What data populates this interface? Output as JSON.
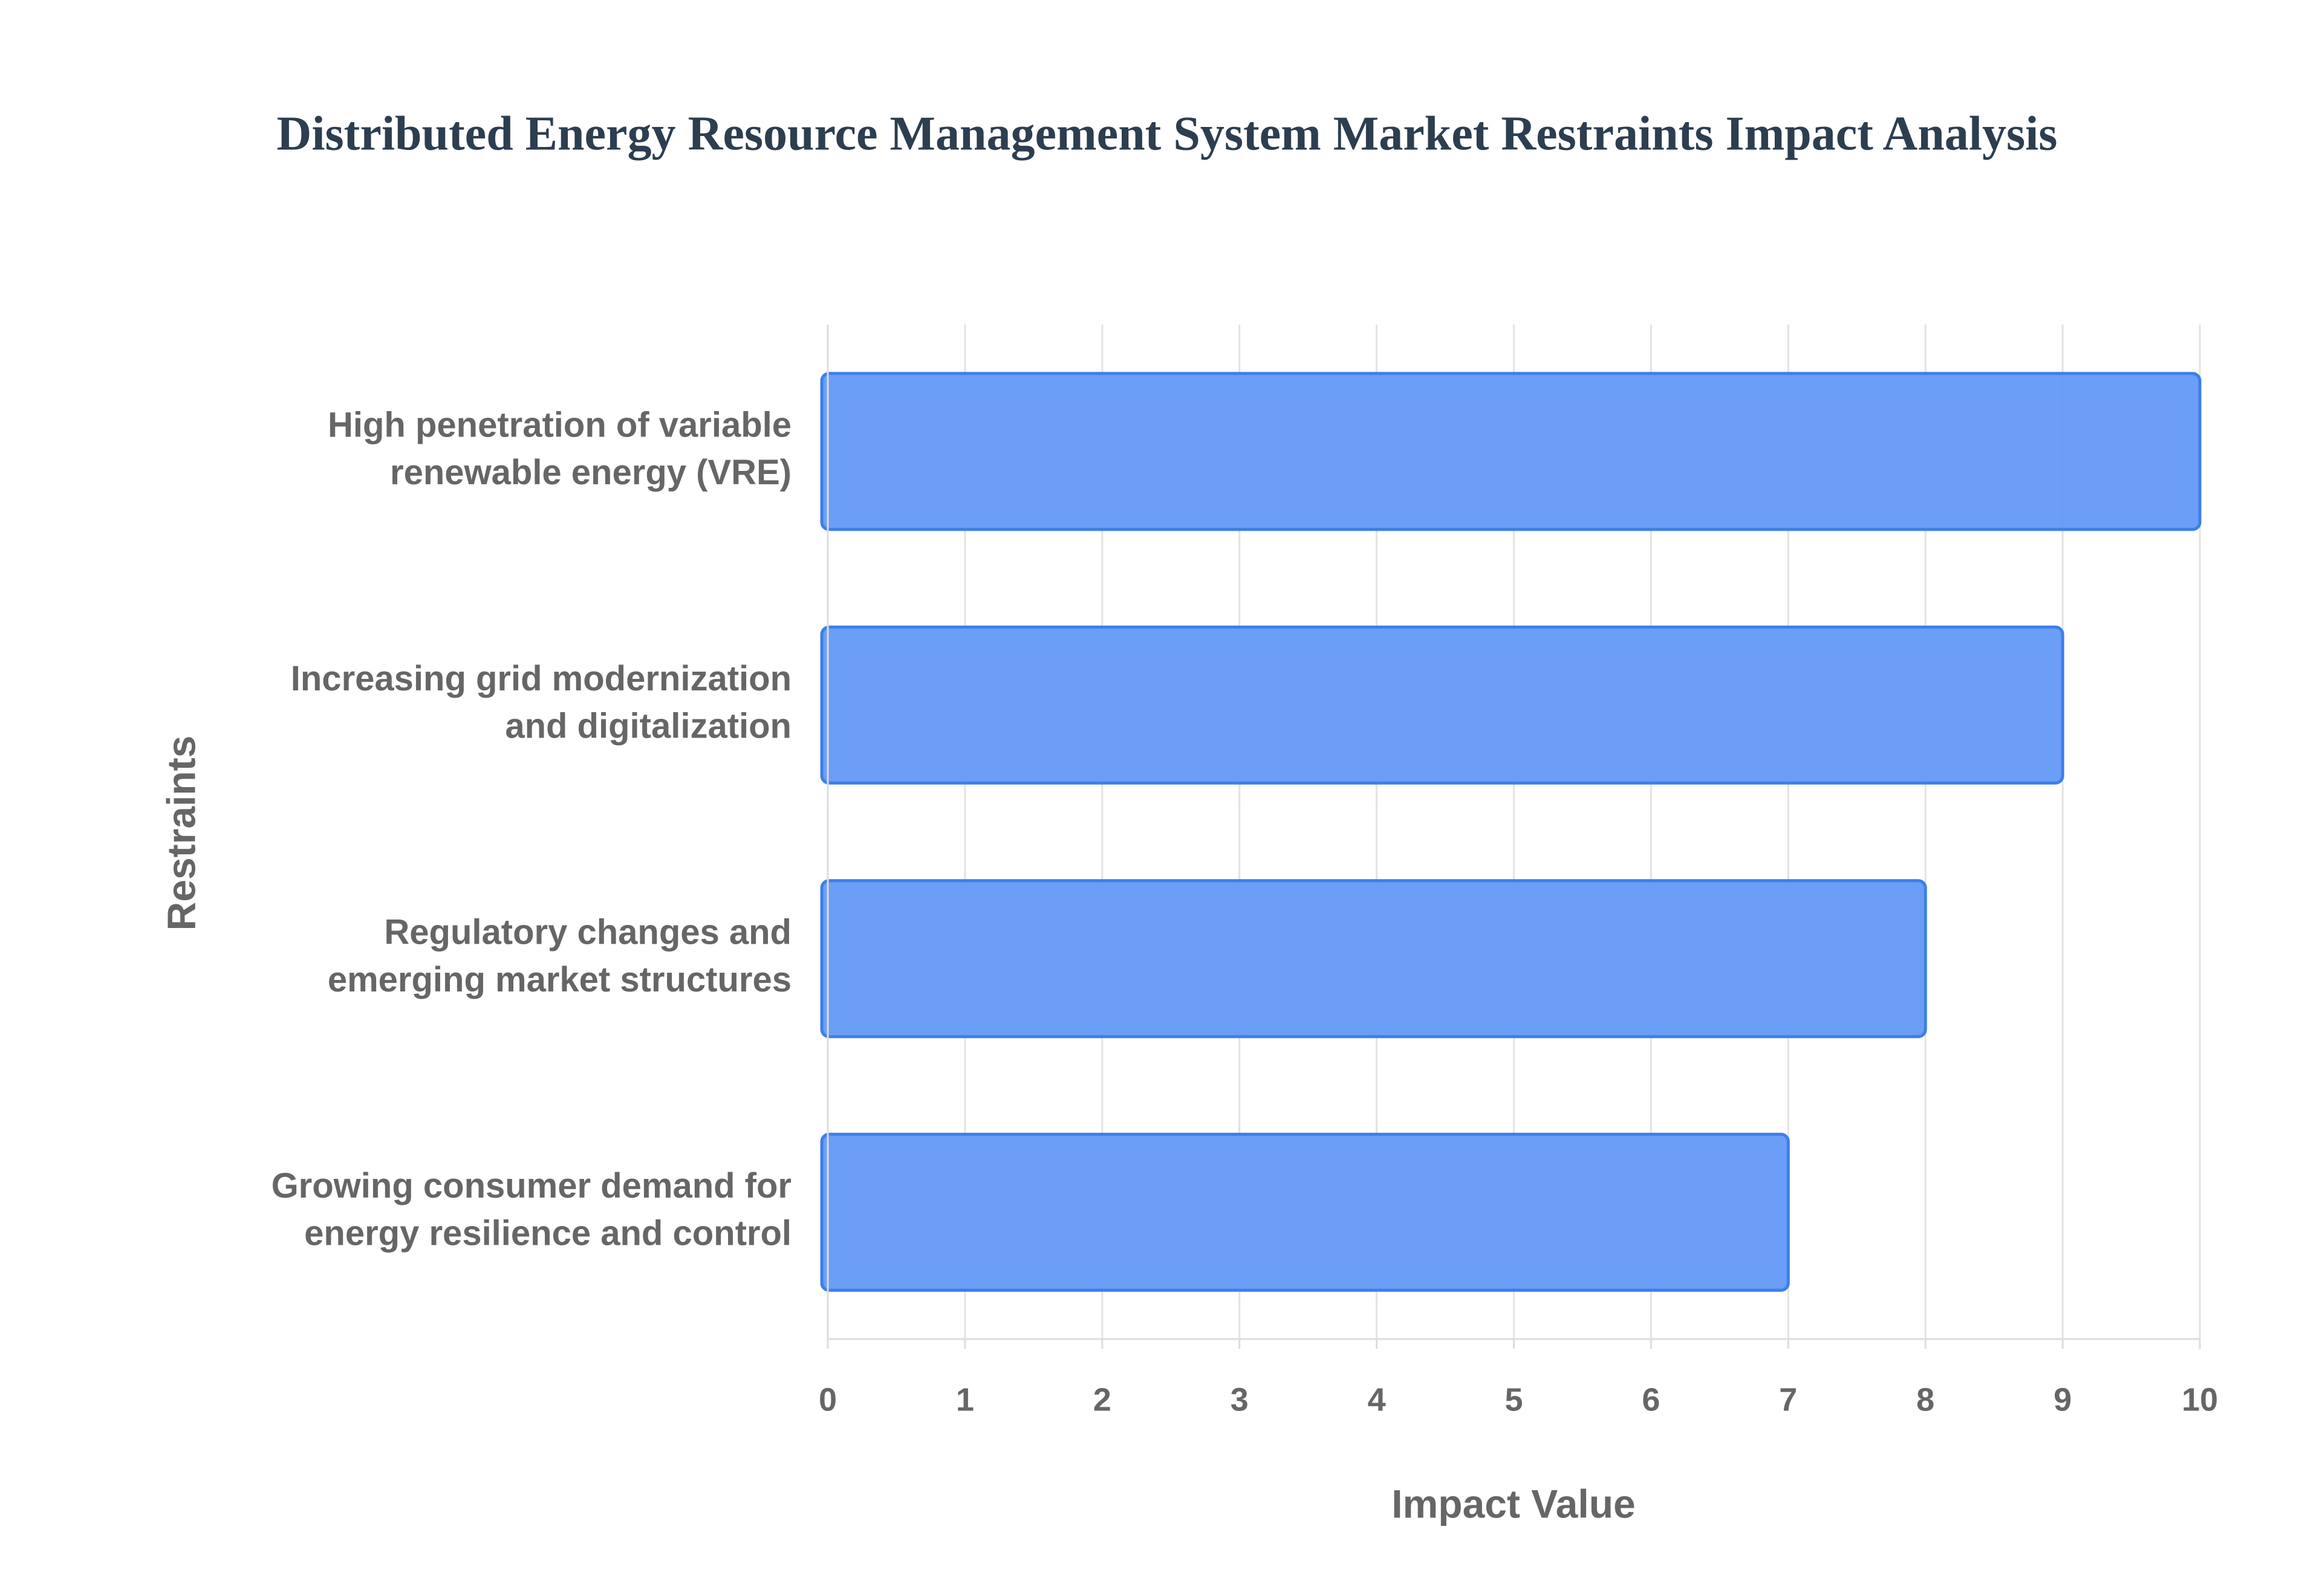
{
  "chart_data": {
    "type": "bar",
    "orientation": "horizontal",
    "title": "Distributed Energy Resource Management System Market Restraints Impact Analysis",
    "x_label": "Impact Value",
    "y_label": "Restraints",
    "categories": [
      "High penetration of variable renewable energy (VRE)",
      "Increasing grid modernization and digitalization",
      "Regulatory changes and emerging market structures",
      "Growing consumer demand for energy resilience and control"
    ],
    "values": [
      10,
      9,
      8,
      7
    ],
    "color": "#6399f5",
    "edge_color": "#3d7fe8",
    "xlim": [
      0,
      10
    ],
    "xticks": [
      0,
      1,
      2,
      3,
      4,
      5,
      6,
      7,
      8,
      9,
      10
    ],
    "grid": true
  }
}
